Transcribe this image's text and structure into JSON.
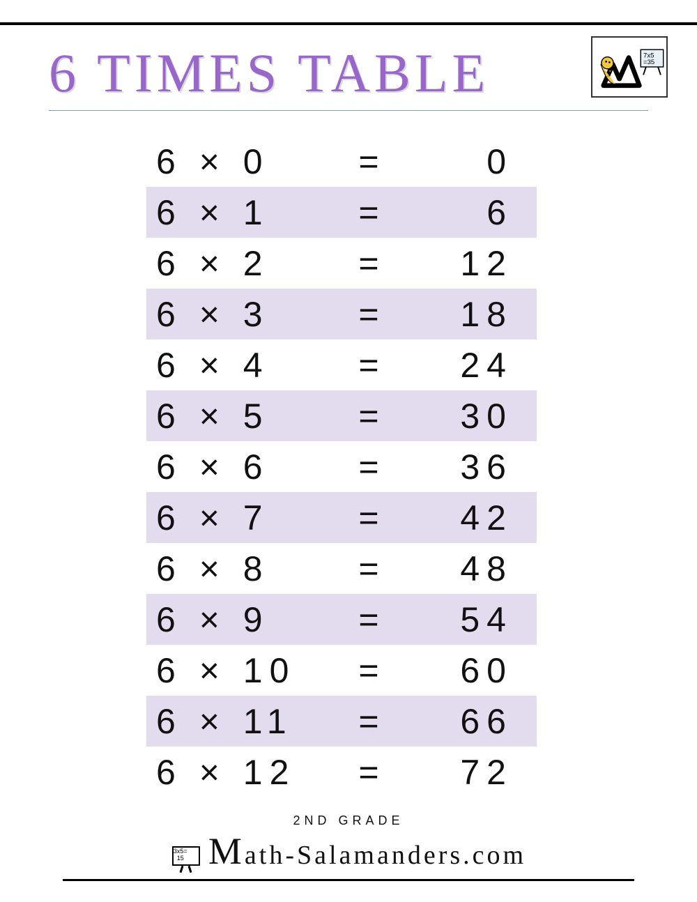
{
  "title": "6 Times Table",
  "title_color": "#9966cc",
  "title_fontsize": 78,
  "underline_color": "#7a9cc6",
  "row_shade_color": "#e3dcee",
  "text_color": "#111111",
  "background_color": "#ffffff",
  "times_table": {
    "type": "table",
    "base": 6,
    "row_fontsize": 50,
    "rows": [
      {
        "lhs": "6 × 0",
        "eq": "=",
        "rhs": "0",
        "shaded": false
      },
      {
        "lhs": "6 × 1",
        "eq": "=",
        "rhs": "6",
        "shaded": true
      },
      {
        "lhs": "6 × 2",
        "eq": "=",
        "rhs": "12",
        "shaded": false
      },
      {
        "lhs": "6 × 3",
        "eq": "=",
        "rhs": "18",
        "shaded": true
      },
      {
        "lhs": "6 × 4",
        "eq": "=",
        "rhs": "24",
        "shaded": false
      },
      {
        "lhs": "6 × 5",
        "eq": "=",
        "rhs": "30",
        "shaded": true
      },
      {
        "lhs": "6 × 6",
        "eq": "=",
        "rhs": "36",
        "shaded": false
      },
      {
        "lhs": "6 × 7",
        "eq": "=",
        "rhs": "42",
        "shaded": true
      },
      {
        "lhs": "6 × 8",
        "eq": "=",
        "rhs": "48",
        "shaded": false
      },
      {
        "lhs": "6 × 9",
        "eq": "=",
        "rhs": "54",
        "shaded": true
      },
      {
        "lhs": "6 × 10",
        "eq": "=",
        "rhs": "60",
        "shaded": false
      },
      {
        "lhs": "6 × 11",
        "eq": "=",
        "rhs": "66",
        "shaded": true
      },
      {
        "lhs": "6 × 12",
        "eq": "=",
        "rhs": "72",
        "shaded": false
      }
    ]
  },
  "footer": {
    "grade": "2nd Grade",
    "brand_big_m": "M",
    "brand_rest": "ath-Salamanders.com",
    "board_text": "3x5=\n15"
  },
  "logo": {
    "board_text": "7x5\n=35"
  }
}
